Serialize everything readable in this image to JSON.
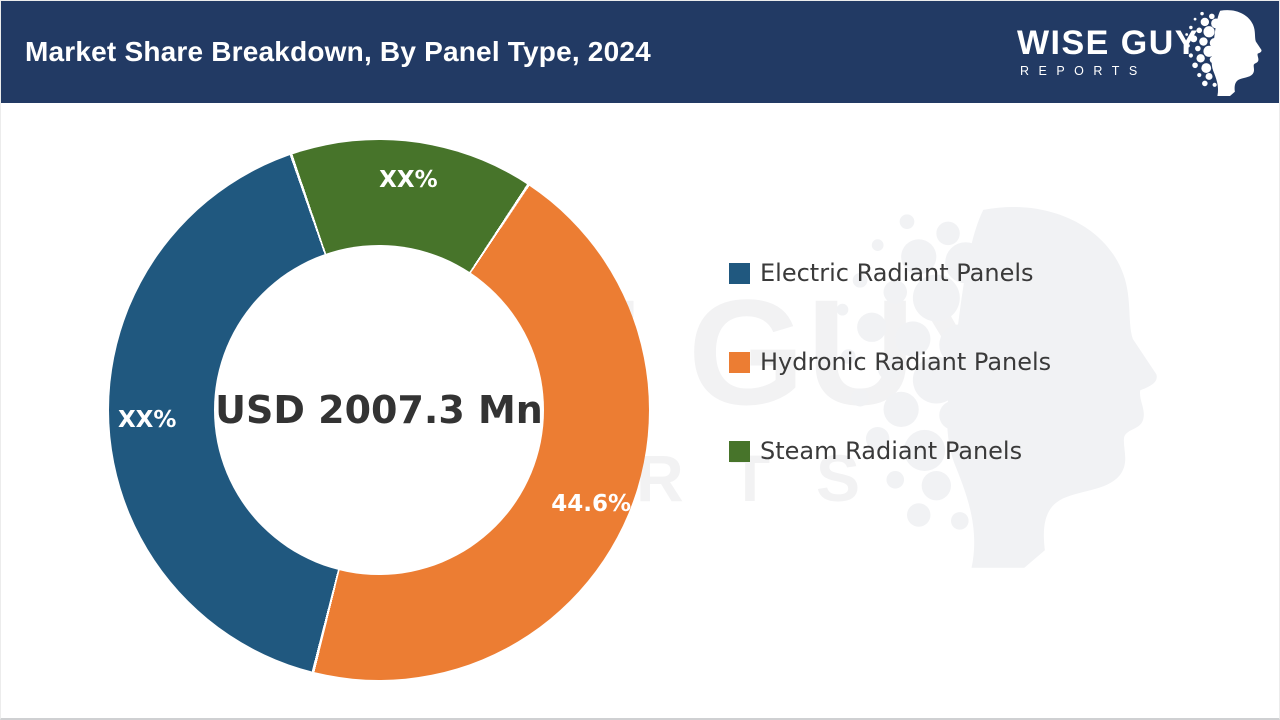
{
  "header": {
    "title": "Market Share Breakdown, By Panel Type, 2024",
    "logo": {
      "line1": "WISE GUY",
      "line2": "REPORTS"
    },
    "bg_color": "#223A64"
  },
  "watermark": {
    "line1": "WISE GUY",
    "line2": "REPORTS"
  },
  "chart_data": {
    "type": "pie",
    "subtype": "donut",
    "title": "Market Share Breakdown, By Panel Type, 2024",
    "center_label": "USD 2007.3 Mn",
    "donut_hole_ratio": 0.61,
    "start_angle_deg": -19,
    "legend_position": "right",
    "segments": [
      {
        "name": "Steam Radiant Panels",
        "label": "XX%",
        "value_pct": 14.6,
        "color": "#47742A"
      },
      {
        "name": "Hydronic Radiant Panels",
        "label": "44.6%",
        "value_pct": 44.6,
        "color": "#EC7D33"
      },
      {
        "name": "Electric Radiant Panels",
        "label": "XX%",
        "value_pct": 40.8,
        "color": "#20587F"
      }
    ],
    "legend": [
      {
        "label": "Electric Radiant Panels",
        "color": "#20587F"
      },
      {
        "label": "Hydronic Radiant Panels",
        "color": "#EC7D33"
      },
      {
        "label": "Steam Radiant Panels",
        "color": "#47742A"
      }
    ]
  }
}
